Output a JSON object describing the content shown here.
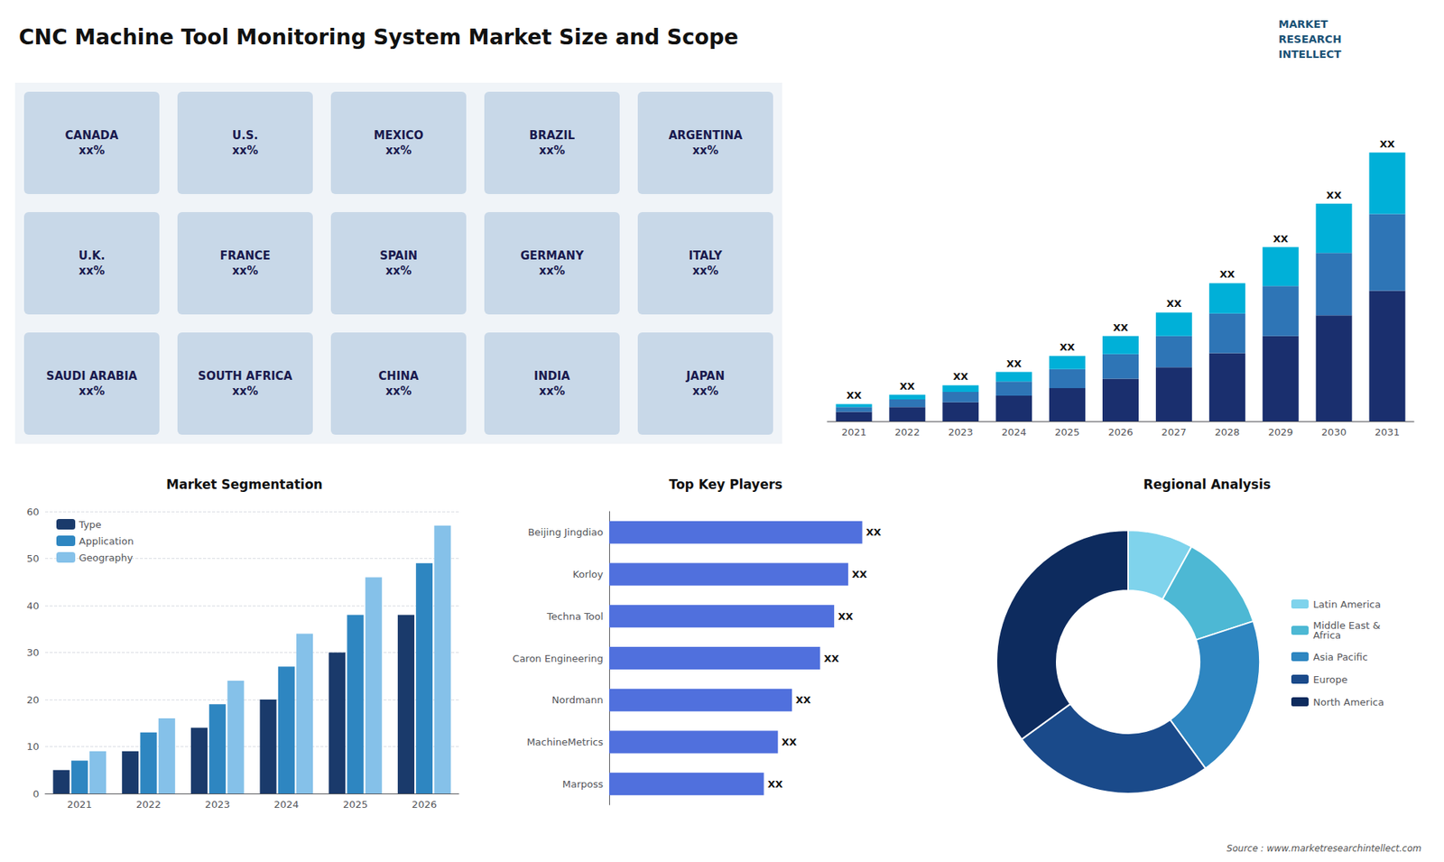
{
  "title": "CNC Machine Tool Monitoring System Market Size and Scope",
  "annotations": [
    "MARKET\nRESEARCH\nINTELLECT",
    "Source : www.marketresearchintellect.com"
  ],
  "chart_data": [
    {
      "type": "map",
      "annotations": [
        "CANADA\nxx%",
        "U.S.\nxx%",
        "MEXICO\nxx%",
        "BRAZIL\nxx%",
        "ARGENTINA\nxx%",
        "U.K.\nxx%",
        "FRANCE\nxx%",
        "SPAIN\nxx%",
        "GERMANY\nxx%",
        "ITALY\nxx%",
        "SAUDI ARABIA\nxx%",
        "SOUTH AFRICA\nxx%",
        "CHINA\nxx%",
        "INDIA\nxx%",
        "JAPAN\nxx%"
      ]
    },
    {
      "type": "bar",
      "stacked": true,
      "categories": [
        "2021",
        "2022",
        "2023",
        "2024",
        "2025",
        "2026",
        "2027",
        "2028",
        "2029",
        "2030",
        "2031"
      ],
      "series": [
        {
          "color": "#1a2f6e",
          "values": [
            1,
            1.5,
            2,
            2.7,
            3.5,
            4.5,
            5.7,
            7.2,
            9.0,
            11.2,
            13.8
          ]
        },
        {
          "color": "#2e75b6",
          "values": [
            0.5,
            0.8,
            1.1,
            1.5,
            2.0,
            2.6,
            3.3,
            4.2,
            5.3,
            6.6,
            8.1
          ]
        },
        {
          "color": "#00b0d8",
          "values": [
            0.3,
            0.5,
            0.7,
            1.0,
            1.4,
            1.9,
            2.5,
            3.2,
            4.1,
            5.2,
            6.5
          ],
          "value_labels": [
            "XX",
            "XX",
            "XX",
            "XX",
            "XX",
            "XX",
            "XX",
            "XX",
            "XX",
            "XX",
            "XX"
          ]
        }
      ],
      "data_labels": true,
      "ylim": [
        0,
        33.4
      ],
      "tick_labels": "x"
    },
    {
      "type": "bar",
      "title": "Market Segmentation",
      "categories": [
        "2021",
        "2022",
        "2023",
        "2024",
        "2025",
        "2026"
      ],
      "series": [
        {
          "name": "Type",
          "color": "#1a3a6b",
          "values": [
            5,
            9,
            14,
            20,
            30,
            38
          ]
        },
        {
          "name": "Application",
          "color": "#2e86c1",
          "values": [
            7,
            13,
            19,
            27,
            38,
            49
          ]
        },
        {
          "name": "Geography",
          "color": "#85c1e9",
          "values": [
            9,
            16,
            24,
            34,
            46,
            57
          ]
        }
      ],
      "ylim": [
        0,
        60
      ],
      "yticks": [
        0,
        10,
        20,
        30,
        40,
        50,
        60
      ],
      "grid": true,
      "legend": "upper left"
    },
    {
      "type": "bar",
      "orientation": "horizontal",
      "title": "Top Key Players",
      "categories": [
        "Beijing Jingdiao",
        "Korloy",
        "Techna Tool",
        "Caron Engineering",
        "Nordmann",
        "MachineMetrics",
        "Marposs"
      ],
      "values": [
        90,
        85,
        80,
        75,
        65,
        60,
        55
      ],
      "value_labels": [
        "XX",
        "XX",
        "XX",
        "XX",
        "XX",
        "XX",
        "XX"
      ],
      "data_labels": true,
      "xlim": [
        0,
        115
      ],
      "tick_labels": "y"
    },
    {
      "type": "pie",
      "title": "Regional Analysis",
      "categories": [
        "Latin America",
        "Middle East &\nAfrica",
        "Asia Pacific",
        "Europe",
        "North America"
      ],
      "values": [
        8,
        12,
        20,
        25,
        35
      ],
      "colors": [
        "#7fd3ec",
        "#4db8d4",
        "#2e86c1",
        "#1a4a8a",
        "#0d2b5e"
      ],
      "legend": "right"
    }
  ]
}
